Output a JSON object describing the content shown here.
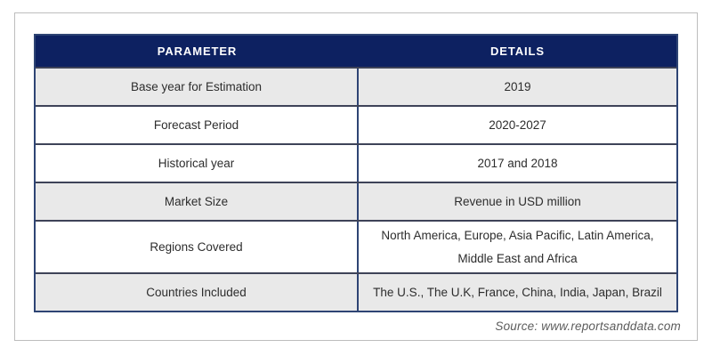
{
  "header": {
    "columns": [
      "PARAMETER",
      "DETAILS"
    ]
  },
  "rows": [
    {
      "parameter": "Base year for Estimation",
      "details": "2019",
      "shaded": true
    },
    {
      "parameter": "Forecast Period",
      "details": "2020-2027",
      "shaded": false
    },
    {
      "parameter": "Historical year",
      "details": "2017 and 2018",
      "shaded": false
    },
    {
      "parameter": "Market Size",
      "details": "Revenue in USD million",
      "shaded": true
    },
    {
      "parameter": "Regions Covered",
      "details": "North America, Europe, Asia Pacific, Latin America, Middle East and Africa",
      "shaded": false
    },
    {
      "parameter": "Countries Included",
      "details": "The U.S., The U.K, France, China, India, Japan, Brazil",
      "shaded": true
    }
  ],
  "source": "Source: www.reportsanddata.com",
  "colors": {
    "header_bg": "#0d2161",
    "header_text": "#ffffff",
    "shaded_row_bg": "#e9e9e9",
    "table_border": "#2e4474",
    "row_divider": "#3e4358",
    "frame_border": "#bdbdbd",
    "body_text": "#2d2d2d",
    "source_text": "#5c5c5c"
  }
}
